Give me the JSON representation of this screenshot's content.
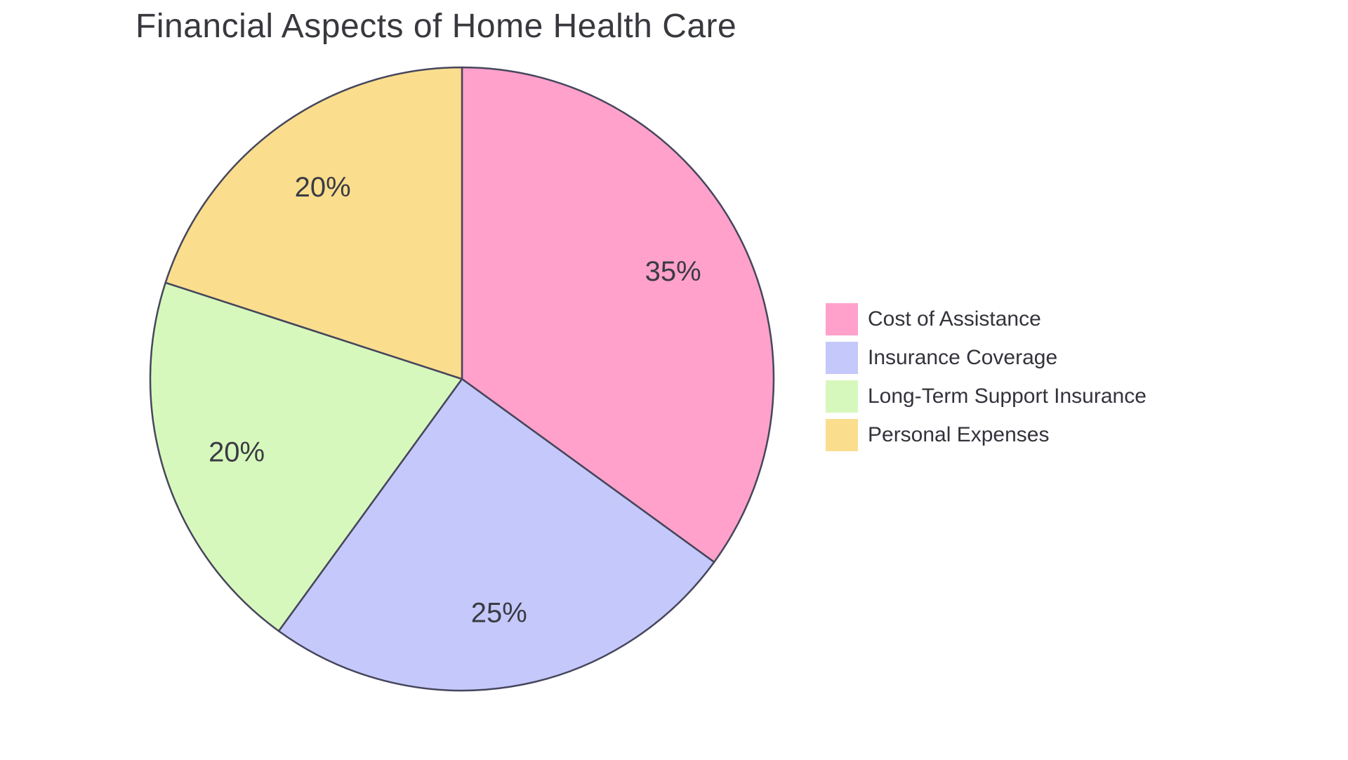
{
  "chart_data": {
    "type": "pie",
    "title": "Financial Aspects of Home Health Care",
    "unit": "%",
    "slices": [
      {
        "label": "Cost of Assistance",
        "value": 35,
        "display": "35%",
        "color": "#FFA1CB"
      },
      {
        "label": "Insurance Coverage",
        "value": 25,
        "display": "25%",
        "color": "#C5C8FA"
      },
      {
        "label": "Long-Term Support Insurance",
        "value": 20,
        "display": "20%",
        "color": "#D7F8BC"
      },
      {
        "label": "Personal Expenses",
        "value": 20,
        "display": "20%",
        "color": "#FADE8E"
      }
    ],
    "start_angle": "top",
    "direction": "clockwise",
    "legend_position": "right",
    "stroke_color": "#46465C",
    "slice_label_color": "#3B3B44",
    "title_color": "#38383E",
    "background_color": "#FFFFFF"
  }
}
